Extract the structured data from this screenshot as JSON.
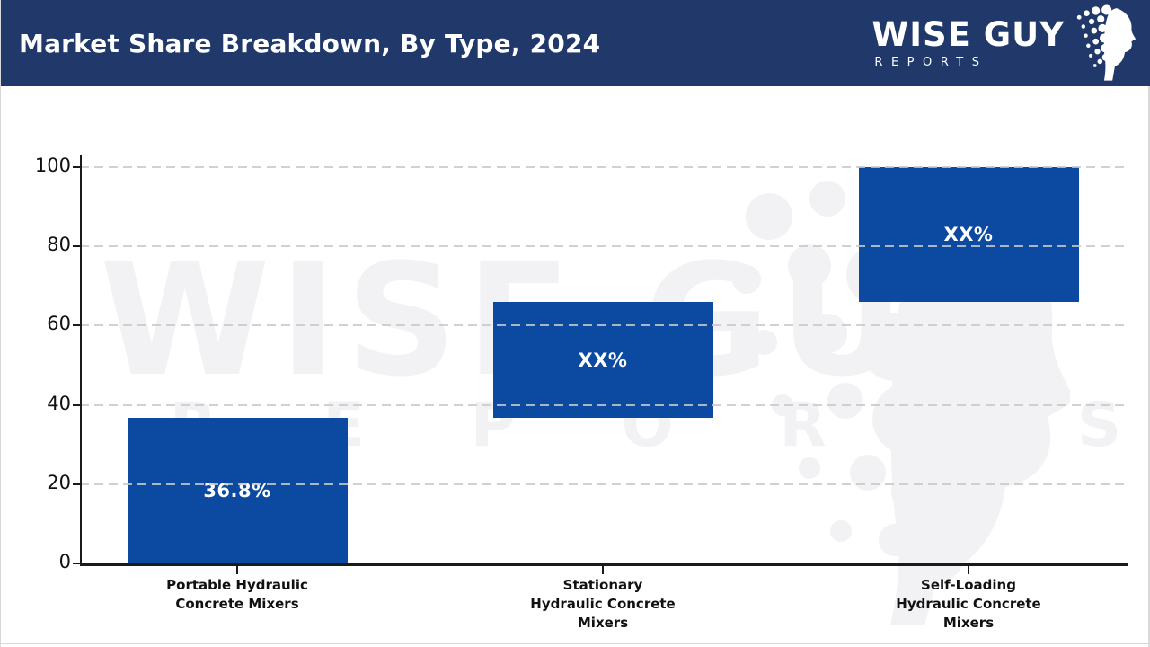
{
  "header": {
    "title": "Market Share Breakdown, By Type, 2024",
    "logo": {
      "line1": "WISE GUY",
      "line2": "REPORTS"
    }
  },
  "watermark": {
    "line1": "WISE GUY",
    "line2": "REPORTS"
  },
  "colors": {
    "header_bg": "#20396a",
    "bar_fill": "#0b4aa0",
    "bar_label": "#ffffff",
    "axis": "#1a1a1a",
    "gridline": "#c9c9c9",
    "watermark": "#f2f2f5",
    "edge_rule": "#d9d9d9"
  },
  "chart_data": {
    "type": "bar",
    "subtype": "floating_waterfall_segments",
    "title": "Market Share Breakdown, By Type, 2024",
    "xlabel": "",
    "ylabel": "",
    "ylim": [
      0,
      100
    ],
    "yticks": [
      0,
      20,
      40,
      60,
      80,
      100
    ],
    "grid": {
      "axis": "y",
      "style": "dashed",
      "drawn_over_bars": true
    },
    "legend": "none",
    "bar_color": "#0b4aa0",
    "categories": [
      "Portable Hydraulic\nConcrete Mixers",
      "Stationary\nHydraulic Concrete\nMixers",
      "Self-Loading\nHydraulic Concrete\nMixers"
    ],
    "segments": [
      {
        "category": "Portable Hydraulic Concrete Mixers",
        "start": 0,
        "end": 36.8,
        "label": "36.8%"
      },
      {
        "category": "Stationary Hydraulic Concrete Mixers",
        "start": 36.8,
        "end": 65.9,
        "label": "XX%"
      },
      {
        "category": "Self-Loading Hydraulic Concrete Mixers",
        "start": 65.9,
        "end": 100,
        "label": "XX%"
      }
    ]
  }
}
